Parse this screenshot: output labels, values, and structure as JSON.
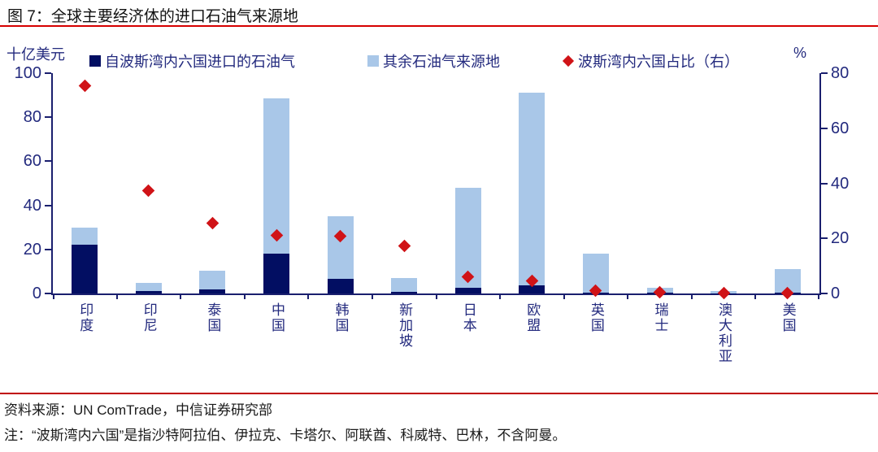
{
  "figure": {
    "title": "图 7：全球主要经济体的进口石油气来源地",
    "source": "资料来源：UN ComTrade，中信证券研究部",
    "note": "注：“波斯湾内六国”是指沙特阿拉伯、伊拉克、卡塔尔、阿联酋、科威特、巴林，不含阿曼。"
  },
  "colors": {
    "gulf_bar": "#020e62",
    "other_bar": "#a9c7e8",
    "pct_marker": "#d01317",
    "axis_line": "#1a1f6e",
    "axis_text": "#232a7e",
    "rule_top": "#d60000",
    "rule_bottom": "#c00000"
  },
  "chart_data": {
    "type": "bar",
    "stacked": true,
    "title": "全球主要经济体的进口石油气来源地",
    "grid": false,
    "legend_position": "top",
    "left_axis": {
      "label": "十亿美元",
      "min": 0,
      "max": 100,
      "ticks": [
        0,
        20,
        40,
        60,
        80,
        100
      ]
    },
    "right_axis": {
      "label": "%",
      "min": 0,
      "max": 80,
      "ticks": [
        0,
        20,
        40,
        60,
        80
      ]
    },
    "categories": [
      "印度",
      "印尼",
      "泰国",
      "中国",
      "韩国",
      "新加坡",
      "日本",
      "欧盟",
      "英国",
      "瑞士",
      "澳大利亚",
      "美国"
    ],
    "series": [
      {
        "name": "自波斯湾内六国进口的石油气",
        "type": "bar",
        "axis": "left",
        "color_key": "gulf_bar",
        "values": [
          22,
          1.2,
          2,
          18,
          6.8,
          0.6,
          2.7,
          3.8,
          0.3,
          0.2,
          0.1,
          0.2
        ]
      },
      {
        "name": "其余石油气来源地",
        "type": "bar",
        "axis": "left",
        "color_key": "other_bar",
        "values": [
          8,
          3.6,
          8.3,
          70.5,
          28.2,
          6.3,
          45.3,
          87.2,
          17.7,
          2.3,
          1.1,
          11
        ]
      },
      {
        "name": "波斯湾内六国占比（右）",
        "type": "scatter-diamond",
        "axis": "right",
        "color_key": "pct_marker",
        "values": [
          75.5,
          37.3,
          25.5,
          21,
          20.7,
          17.2,
          6,
          4.5,
          1.1,
          0.3,
          0.2,
          0.2
        ]
      }
    ]
  }
}
